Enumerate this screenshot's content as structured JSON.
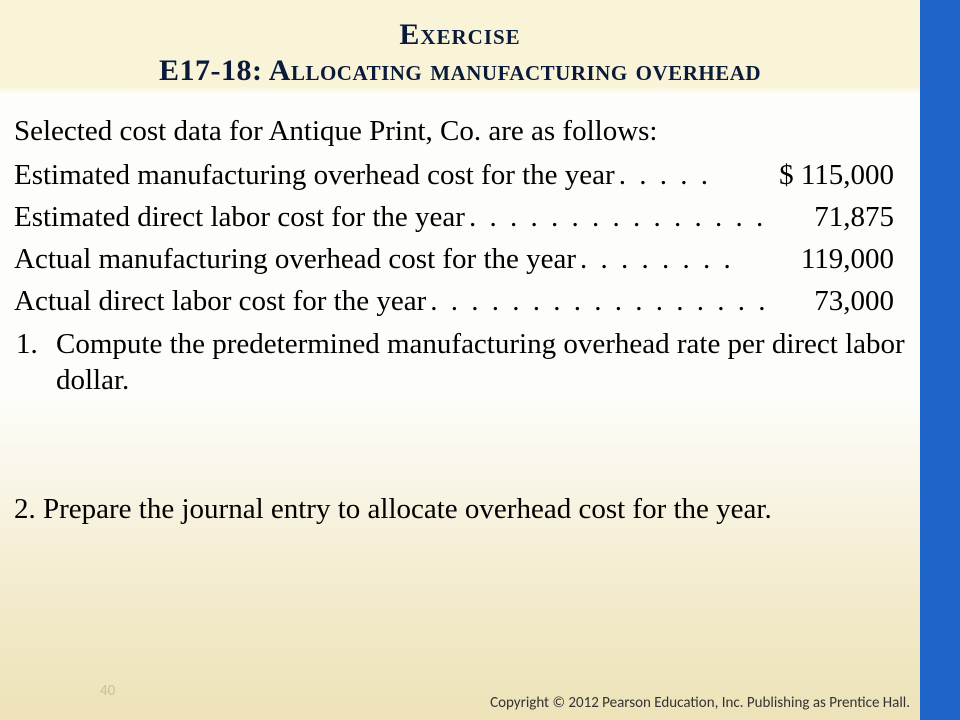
{
  "heading": {
    "exercise": "Exercise",
    "title": "E17-18: Allocating manufacturing overhead"
  },
  "intro": "Selected cost data for Antique Print, Co. are as follows:",
  "costs": [
    {
      "label": "Estimated manufacturing overhead cost for the year",
      "value": "$ 115,000"
    },
    {
      "label": "Estimated direct labor cost for the year",
      "value": "71,875"
    },
    {
      "label": "Actual manufacturing overhead cost for the year",
      "value": "119,000"
    },
    {
      "label": "Actual direct labor cost for the year",
      "value": "73,000"
    }
  ],
  "questions": {
    "q1_num": "1.",
    "q1_text": "Compute the predetermined manufacturing overhead rate per direct labor dollar.",
    "q2_text": "2. Prepare the journal entry to allocate overhead cost for the year."
  },
  "footer": {
    "page": "40",
    "copyright": "Copyright © 2012 Pearson Education, Inc. Publishing as Prentice Hall."
  },
  "style": {
    "accent_blue": "#1f64c8",
    "heading_color": "#0a1a3a",
    "bg_top": "#f9f3d8",
    "bg_mid": "#fdfdfa",
    "bg_bottom": "#ede2b8",
    "body_fontsize": 29,
    "heading_fontsize": 30
  }
}
